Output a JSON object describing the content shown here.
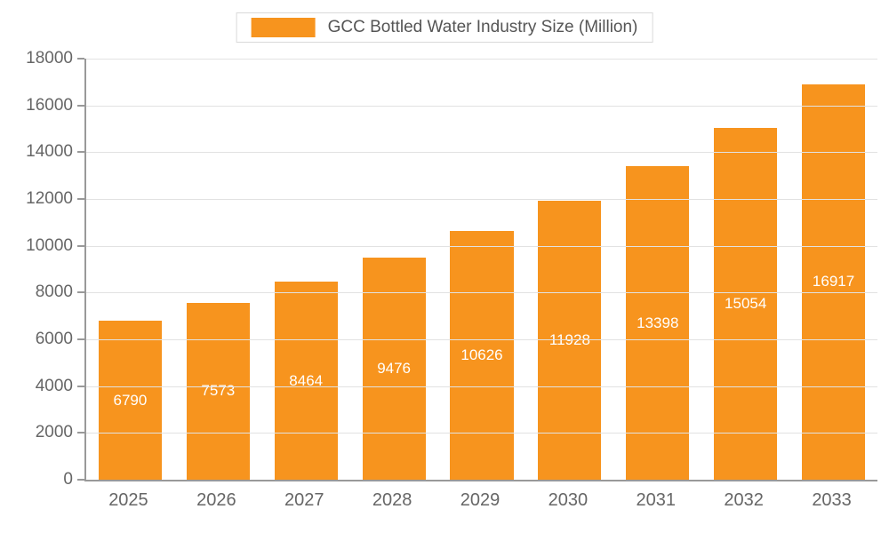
{
  "chart_data": {
    "type": "bar",
    "title": "GCC Bottled Water Industry Size (Million)",
    "categories": [
      "2025",
      "2026",
      "2027",
      "2028",
      "2029",
      "2030",
      "2031",
      "2032",
      "2033"
    ],
    "values": [
      6790,
      7573,
      8464,
      9476,
      10626,
      11928,
      13398,
      15054,
      16917
    ],
    "xlabel": "",
    "ylabel": "",
    "ylim": [
      0,
      18000
    ],
    "ytick_interval": 2000,
    "grid": true,
    "legend_position": "top",
    "bar_color": "#F7941E",
    "value_label_color": "#FFFFFF",
    "axis_color": "#999999",
    "gridline_color": "#E2E2E2",
    "tick_label_color": "#666666",
    "legend_text_color": "#555555"
  }
}
